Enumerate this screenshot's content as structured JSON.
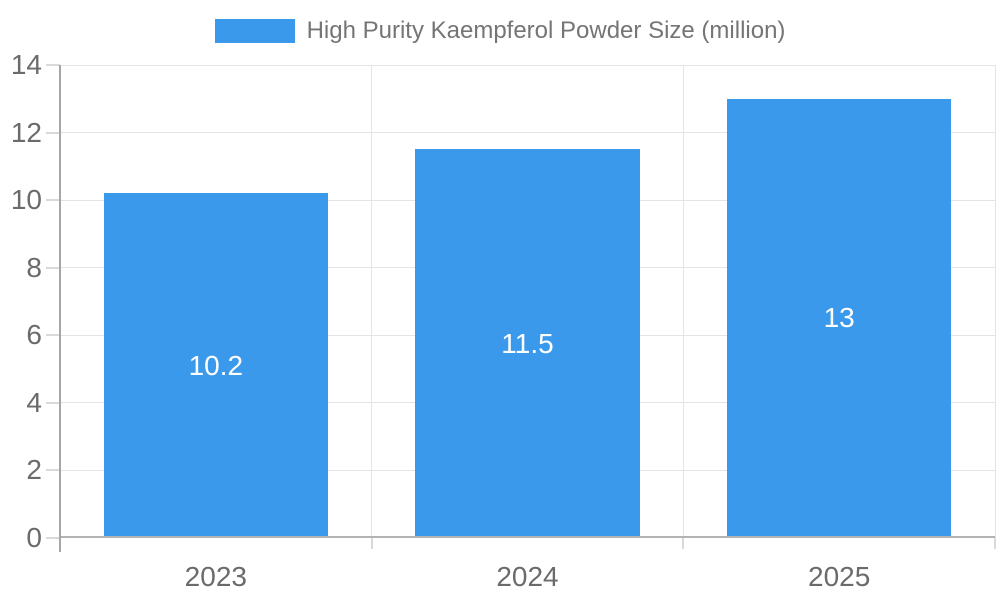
{
  "chart_data": {
    "type": "bar",
    "title": "High Purity Kaempferol Powder Size (million)",
    "legend_position": "top",
    "categories": [
      "2023",
      "2024",
      "2025"
    ],
    "series": [
      {
        "name": "High Purity Kaempferol Powder Size (million)",
        "values": [
          10.2,
          11.5,
          13
        ]
      }
    ],
    "value_labels": [
      "10.2",
      "11.5",
      "13"
    ],
    "ylim": [
      0,
      14
    ],
    "yticks": [
      0,
      2,
      4,
      6,
      8,
      10,
      12,
      14
    ],
    "grid": true,
    "colors": {
      "bar": "#3b99ec",
      "gridline": "#e4e4e4",
      "axis_line": "#b3b3b3",
      "y_axis_line": "#a6a6a6",
      "tick_mark": "#d9d9d9",
      "tick_text": "#6b6b6b",
      "legend_text": "#757575",
      "value_text": "#ffffff",
      "background": "#ffffff"
    }
  }
}
